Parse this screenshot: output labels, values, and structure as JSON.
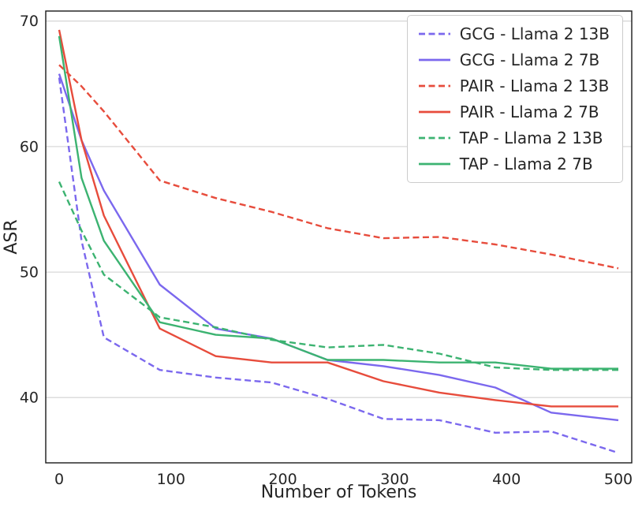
{
  "chart_data": {
    "type": "line",
    "title": "",
    "xlabel": "Number of Tokens",
    "ylabel": "ASR",
    "xlim": [
      -12,
      512
    ],
    "ylim": [
      34.8,
      70.8
    ],
    "xticks": [
      0,
      100,
      200,
      300,
      400,
      500
    ],
    "yticks": [
      40,
      50,
      60,
      70
    ],
    "grid": "horizontal-only",
    "legend_position": "upper-right",
    "x": [
      0,
      20,
      40,
      90,
      140,
      190,
      240,
      290,
      340,
      390,
      440,
      500
    ],
    "series": [
      {
        "name": "GCG - Llama 2 13B",
        "color": "#7B68EE",
        "style": "dashed",
        "values": [
          65.5,
          52.5,
          44.8,
          42.2,
          41.6,
          41.2,
          39.9,
          38.3,
          38.2,
          37.2,
          37.3,
          35.6
        ]
      },
      {
        "name": "GCG - Llama 2 7B",
        "color": "#7B68EE",
        "style": "solid",
        "values": [
          65.8,
          60.5,
          56.5,
          49.0,
          45.5,
          44.7,
          43.0,
          42.5,
          41.8,
          40.8,
          38.8,
          38.2
        ]
      },
      {
        "name": "PAIR - Llama 2 13B",
        "color": "#E74C3C",
        "style": "dashed",
        "values": [
          66.5,
          64.8,
          62.8,
          57.3,
          55.9,
          54.8,
          53.5,
          52.7,
          52.8,
          52.2,
          51.4,
          50.3
        ]
      },
      {
        "name": "PAIR - Llama 2 7B",
        "color": "#E74C3C",
        "style": "solid",
        "values": [
          69.3,
          60.5,
          54.5,
          45.5,
          43.3,
          42.8,
          42.8,
          41.3,
          40.4,
          39.8,
          39.3,
          39.3
        ]
      },
      {
        "name": "TAP - Llama 2 13B",
        "color": "#3CB371",
        "style": "dashed",
        "values": [
          57.2,
          53.3,
          49.8,
          46.4,
          45.6,
          44.6,
          44.0,
          44.2,
          43.5,
          42.4,
          42.2,
          42.2
        ]
      },
      {
        "name": "TAP - Llama 2 7B",
        "color": "#3CB371",
        "style": "solid",
        "values": [
          68.8,
          57.5,
          52.5,
          46.0,
          45.0,
          44.7,
          43.0,
          43.0,
          42.8,
          42.8,
          42.3,
          42.3
        ]
      }
    ],
    "style": {
      "grid_color": "#d9d9d9",
      "spine_color": "#1a1a1a",
      "text_color": "#262626",
      "background": "#ffffff"
    }
  }
}
